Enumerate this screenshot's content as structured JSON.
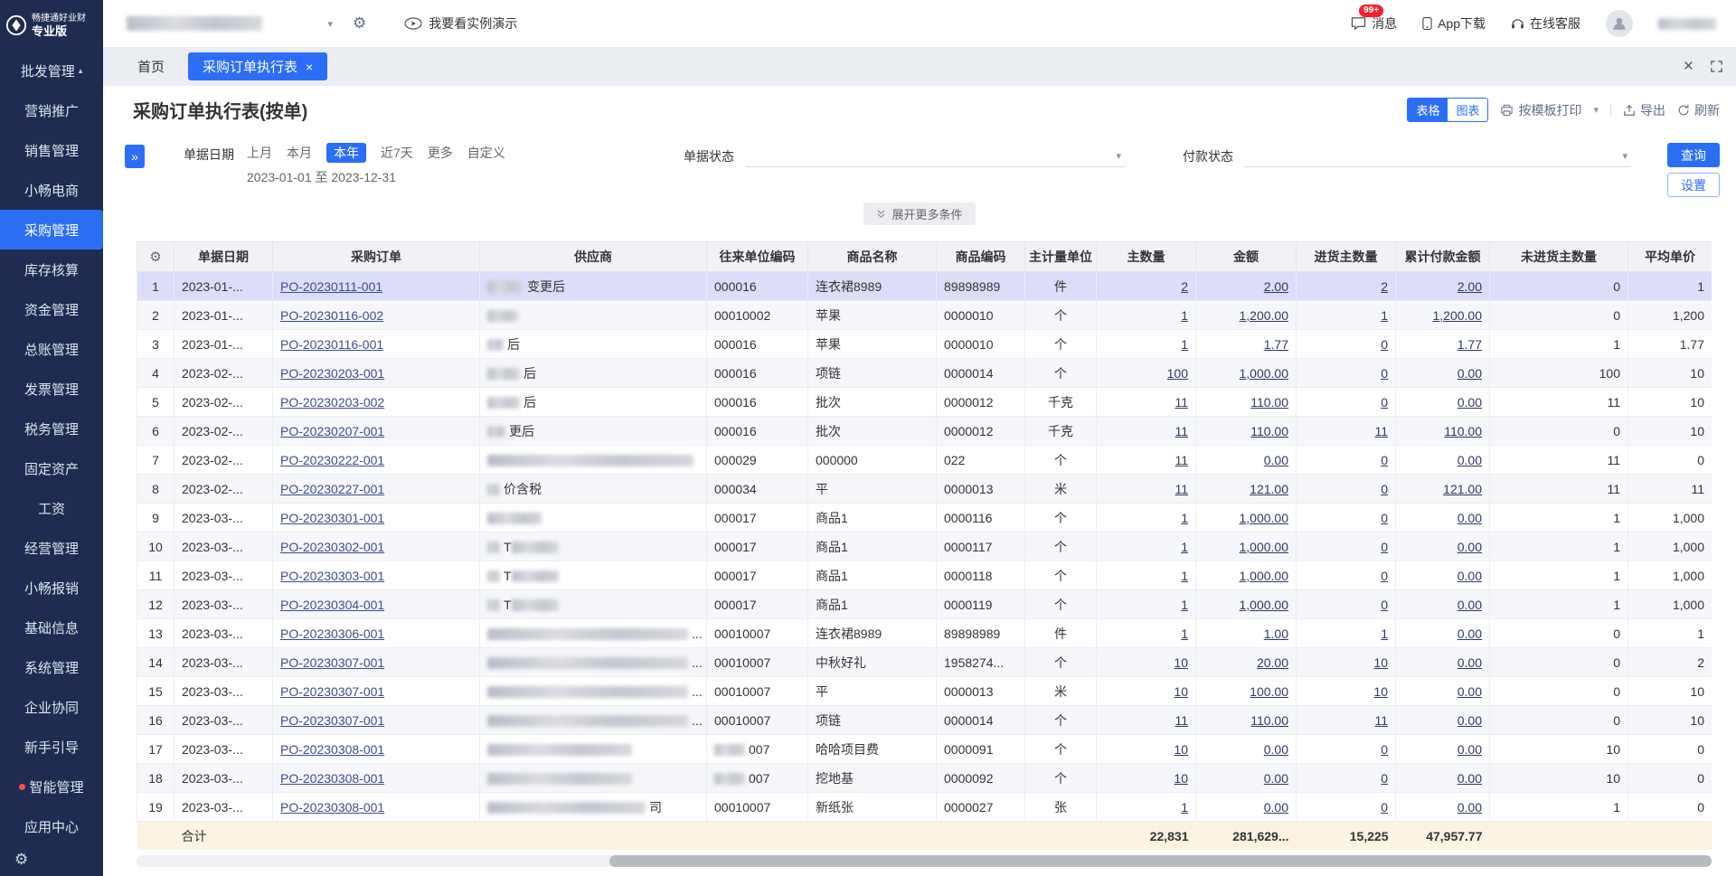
{
  "colors": {
    "accent": "#2b6ef5",
    "sidebar_bg": "#1d2c50",
    "badge_red": "#f5222d",
    "selected_row": "#dcddf8",
    "total_row_bg": "#fcf4e0"
  },
  "icons": {
    "gear": "⚙",
    "chevron_down": "▾",
    "arrow_up": "▴",
    "double_right": "»",
    "close": "×"
  },
  "app": {
    "logo_line1": "畅捷通好业财",
    "logo_line2": "专业版"
  },
  "topbar": {
    "demo": "我要看实例演示",
    "messages": "消息",
    "badge": "99+",
    "download": "App下载",
    "service": "在线客服"
  },
  "sidebar": {
    "items": [
      {
        "key": "wholesale",
        "label": "批发管理",
        "arrow": true
      },
      {
        "key": "marketing",
        "label": "营销推广"
      },
      {
        "key": "sales",
        "label": "销售管理"
      },
      {
        "key": "ecommerce",
        "label": "小畅电商"
      },
      {
        "key": "purchase",
        "label": "采购管理",
        "active": true
      },
      {
        "key": "inventory",
        "label": "库存核算"
      },
      {
        "key": "funds",
        "label": "资金管理"
      },
      {
        "key": "ledger",
        "label": "总账管理"
      },
      {
        "key": "invoice",
        "label": "发票管理"
      },
      {
        "key": "tax",
        "label": "税务管理"
      },
      {
        "key": "fixed-assets",
        "label": "固定资产"
      },
      {
        "key": "payroll",
        "label": "工资"
      },
      {
        "key": "operation",
        "label": "经营管理"
      },
      {
        "key": "expense",
        "label": "小畅报销"
      },
      {
        "key": "basic-info",
        "label": "基础信息"
      },
      {
        "key": "system",
        "label": "系统管理"
      },
      {
        "key": "collaboration",
        "label": "企业协同"
      },
      {
        "key": "guide",
        "label": "新手引导"
      },
      {
        "key": "smart",
        "label": "智能管理",
        "dot": true
      },
      {
        "key": "app-center",
        "label": "应用中心"
      }
    ]
  },
  "tabs": {
    "home": "首页",
    "report": "采购订单执行表"
  },
  "page": {
    "title": "采购订单执行表(按单)",
    "view_table": "表格",
    "view_chart": "图表",
    "print": "按模板打印",
    "export": "导出",
    "refresh": "刷新"
  },
  "filters": {
    "date_label": "单据日期",
    "date_options": [
      "上月",
      "本月",
      "本年",
      "近7天",
      "更多",
      "自定义"
    ],
    "date_active": "本年",
    "date_range": "2023-01-01 至 2023-12-31",
    "doc_status_label": "单据状态",
    "pay_status_label": "付款状态",
    "search": "查询",
    "settings": "设置",
    "expand_more": "展开更多条件"
  },
  "table": {
    "columns": [
      "单据日期",
      "采购订单",
      "供应商",
      "往来单位编码",
      "商品名称",
      "商品编码",
      "主计量单位",
      "主数量",
      "金额",
      "进货主数量",
      "累计付款金额",
      "未进货主数量",
      "平均单价"
    ],
    "rows": [
      {
        "no": "1",
        "selected": true,
        "date": "2023-01-...",
        "po": "PO-20230111-001",
        "supplier": [
          {
            "b": 40
          },
          {
            "t": "变更后"
          }
        ],
        "partner": "000016",
        "product": "连衣裙8989",
        "product_code": "89898989",
        "unit": "件",
        "qty": "2",
        "amount": "2.00",
        "in_qty": "2",
        "paid": "2.00",
        "not_in_qty": "0",
        "avg_price": "1"
      },
      {
        "no": "2",
        "date": "2023-01-...",
        "po": "PO-20230116-002",
        "supplier": [
          {
            "b": 34
          }
        ],
        "partner": "00010002",
        "product": "苹果",
        "product_code": "0000010",
        "unit": "个",
        "qty": "1",
        "amount": "1,200.00",
        "in_qty": "1",
        "paid": "1,200.00",
        "not_in_qty": "0",
        "avg_price": "1,200"
      },
      {
        "no": "3",
        "date": "2023-01-...",
        "po": "PO-20230116-001",
        "supplier": [
          {
            "b": 18
          },
          {
            "t": "后"
          }
        ],
        "partner": "000016",
        "product": "苹果",
        "product_code": "0000010",
        "unit": "个",
        "qty": "1",
        "amount": "1.77",
        "in_qty": "0",
        "paid": "1.77",
        "not_in_qty": "1",
        "avg_price": "1.77"
      },
      {
        "no": "4",
        "date": "2023-02-...",
        "po": "PO-20230203-001",
        "supplier": [
          {
            "b": 36
          },
          {
            "t": "后"
          }
        ],
        "partner": "000016",
        "product": "项链",
        "product_code": "0000014",
        "unit": "个",
        "qty": "100",
        "amount": "1,000.00",
        "in_qty": "0",
        "paid": "0.00",
        "not_in_qty": "100",
        "avg_price": "10"
      },
      {
        "no": "5",
        "date": "2023-02-...",
        "po": "PO-20230203-002",
        "supplier": [
          {
            "b": 36
          },
          {
            "t": "后"
          }
        ],
        "partner": "000016",
        "product": "批次",
        "product_code": "0000012",
        "unit": "千克",
        "qty": "11",
        "amount": "110.00",
        "in_qty": "0",
        "paid": "0.00",
        "not_in_qty": "11",
        "avg_price": "10"
      },
      {
        "no": "6",
        "date": "2023-02-...",
        "po": "PO-20230207-001",
        "supplier": [
          {
            "b": 20
          },
          {
            "t": "更后"
          }
        ],
        "partner": "000016",
        "product": "批次",
        "product_code": "0000012",
        "unit": "千克",
        "qty": "11",
        "amount": "110.00",
        "in_qty": "11",
        "paid": "110.00",
        "not_in_qty": "0",
        "avg_price": "10"
      },
      {
        "no": "7",
        "date": "2023-02-...",
        "po": "PO-20230222-001",
        "supplier": [
          {
            "b": 228
          }
        ],
        "partner": "000029",
        "product": "000000",
        "product_code": "022",
        "unit": "个",
        "qty": "11",
        "amount": "0.00",
        "in_qty": "0",
        "paid": "0.00",
        "not_in_qty": "11",
        "avg_price": "0"
      },
      {
        "no": "8",
        "date": "2023-02-...",
        "po": "PO-20230227-001",
        "supplier": [
          {
            "b": 14
          },
          {
            "t": "价含税"
          }
        ],
        "partner": "000034",
        "product": "平",
        "product_code": "0000013",
        "unit": "米",
        "qty": "11",
        "amount": "121.00",
        "in_qty": "0",
        "paid": "121.00",
        "not_in_qty": "11",
        "avg_price": "11"
      },
      {
        "no": "9",
        "date": "2023-03-...",
        "po": "PO-20230301-001",
        "supplier": [
          {
            "b": 60
          }
        ],
        "partner": "000017",
        "product": "商品1",
        "product_code": "0000116",
        "unit": "个",
        "qty": "1",
        "amount": "1,000.00",
        "in_qty": "0",
        "paid": "0.00",
        "not_in_qty": "1",
        "avg_price": "1,000"
      },
      {
        "no": "10",
        "date": "2023-03-...",
        "po": "PO-20230302-001",
        "supplier": [
          {
            "b": 14
          },
          {
            "t": "T"
          },
          {
            "b": 52
          }
        ],
        "partner": "000017",
        "product": "商品1",
        "product_code": "0000117",
        "unit": "个",
        "qty": "1",
        "amount": "1,000.00",
        "in_qty": "0",
        "paid": "0.00",
        "not_in_qty": "1",
        "avg_price": "1,000"
      },
      {
        "no": "11",
        "date": "2023-03-...",
        "po": "PO-20230303-001",
        "supplier": [
          {
            "b": 14
          },
          {
            "t": "T"
          },
          {
            "b": 52
          }
        ],
        "partner": "000017",
        "product": "商品1",
        "product_code": "0000118",
        "unit": "个",
        "qty": "1",
        "amount": "1,000.00",
        "in_qty": "0",
        "paid": "0.00",
        "not_in_qty": "1",
        "avg_price": "1,000"
      },
      {
        "no": "12",
        "date": "2023-03-...",
        "po": "PO-20230304-001",
        "supplier": [
          {
            "b": 14
          },
          {
            "t": "T"
          },
          {
            "b": 52
          }
        ],
        "partner": "000017",
        "product": "商品1",
        "product_code": "0000119",
        "unit": "个",
        "qty": "1",
        "amount": "1,000.00",
        "in_qty": "0",
        "paid": "0.00",
        "not_in_qty": "1",
        "avg_price": "1,000"
      },
      {
        "no": "13",
        "date": "2023-03-...",
        "po": "PO-20230306-001",
        "supplier": [
          {
            "b": 222
          },
          {
            "t": "..."
          }
        ],
        "partner": "00010007",
        "product": "连衣裙8989",
        "product_code": "89898989",
        "unit": "件",
        "qty": "1",
        "amount": "1.00",
        "in_qty": "1",
        "paid": "0.00",
        "not_in_qty": "0",
        "avg_price": "1"
      },
      {
        "no": "14",
        "date": "2023-03-...",
        "po": "PO-20230307-001",
        "supplier": [
          {
            "b": 222
          },
          {
            "t": "..."
          }
        ],
        "partner": "00010007",
        "product": "中秋好礼",
        "product_code": "1958274...",
        "unit": "个",
        "qty": "10",
        "amount": "20.00",
        "in_qty": "10",
        "paid": "0.00",
        "not_in_qty": "0",
        "avg_price": "2"
      },
      {
        "no": "15",
        "date": "2023-03-...",
        "po": "PO-20230307-001",
        "supplier": [
          {
            "b": 222
          },
          {
            "t": "..."
          }
        ],
        "partner": "00010007",
        "product": "平",
        "product_code": "0000013",
        "unit": "米",
        "qty": "10",
        "amount": "100.00",
        "in_qty": "10",
        "paid": "0.00",
        "not_in_qty": "0",
        "avg_price": "10"
      },
      {
        "no": "16",
        "date": "2023-03-...",
        "po": "PO-20230307-001",
        "supplier": [
          {
            "b": 222
          },
          {
            "t": "..."
          }
        ],
        "partner": "00010007",
        "product": "项链",
        "product_code": "0000014",
        "unit": "个",
        "qty": "11",
        "amount": "110.00",
        "in_qty": "11",
        "paid": "0.00",
        "not_in_qty": "0",
        "avg_price": "10"
      },
      {
        "no": "17",
        "date": "2023-03-...",
        "po": "PO-20230308-001",
        "supplier": [
          {
            "b": 160
          }
        ],
        "partner": [
          {
            "b": 34
          },
          {
            "t": "007"
          }
        ],
        "product": "哈哈项目费",
        "product_code": "0000091",
        "unit": "个",
        "qty": "10",
        "amount": "0.00",
        "in_qty": "0",
        "paid": "0.00",
        "not_in_qty": "10",
        "avg_price": "0"
      },
      {
        "no": "18",
        "date": "2023-03-...",
        "po": "PO-20230308-001",
        "supplier": [
          {
            "b": 160
          }
        ],
        "partner": [
          {
            "b": 34
          },
          {
            "t": "007"
          }
        ],
        "product": "挖地基",
        "product_code": "0000092",
        "unit": "个",
        "qty": "10",
        "amount": "0.00",
        "in_qty": "0",
        "paid": "0.00",
        "not_in_qty": "10",
        "avg_price": "0"
      },
      {
        "no": "19",
        "date": "2023-03-...",
        "po": "PO-20230308-001",
        "supplier": [
          {
            "b": 175
          },
          {
            "t": "司"
          }
        ],
        "partner": "00010007",
        "product": "新纸张",
        "product_code": "0000027",
        "unit": "张",
        "qty": "1",
        "amount": "0.00",
        "in_qty": "0",
        "paid": "0.00",
        "not_in_qty": "1",
        "avg_price": "0"
      }
    ],
    "total": {
      "label": "合计",
      "qty": "22,831",
      "amount": "281,629...",
      "in_qty": "15,225",
      "paid": "47,957.77"
    }
  }
}
